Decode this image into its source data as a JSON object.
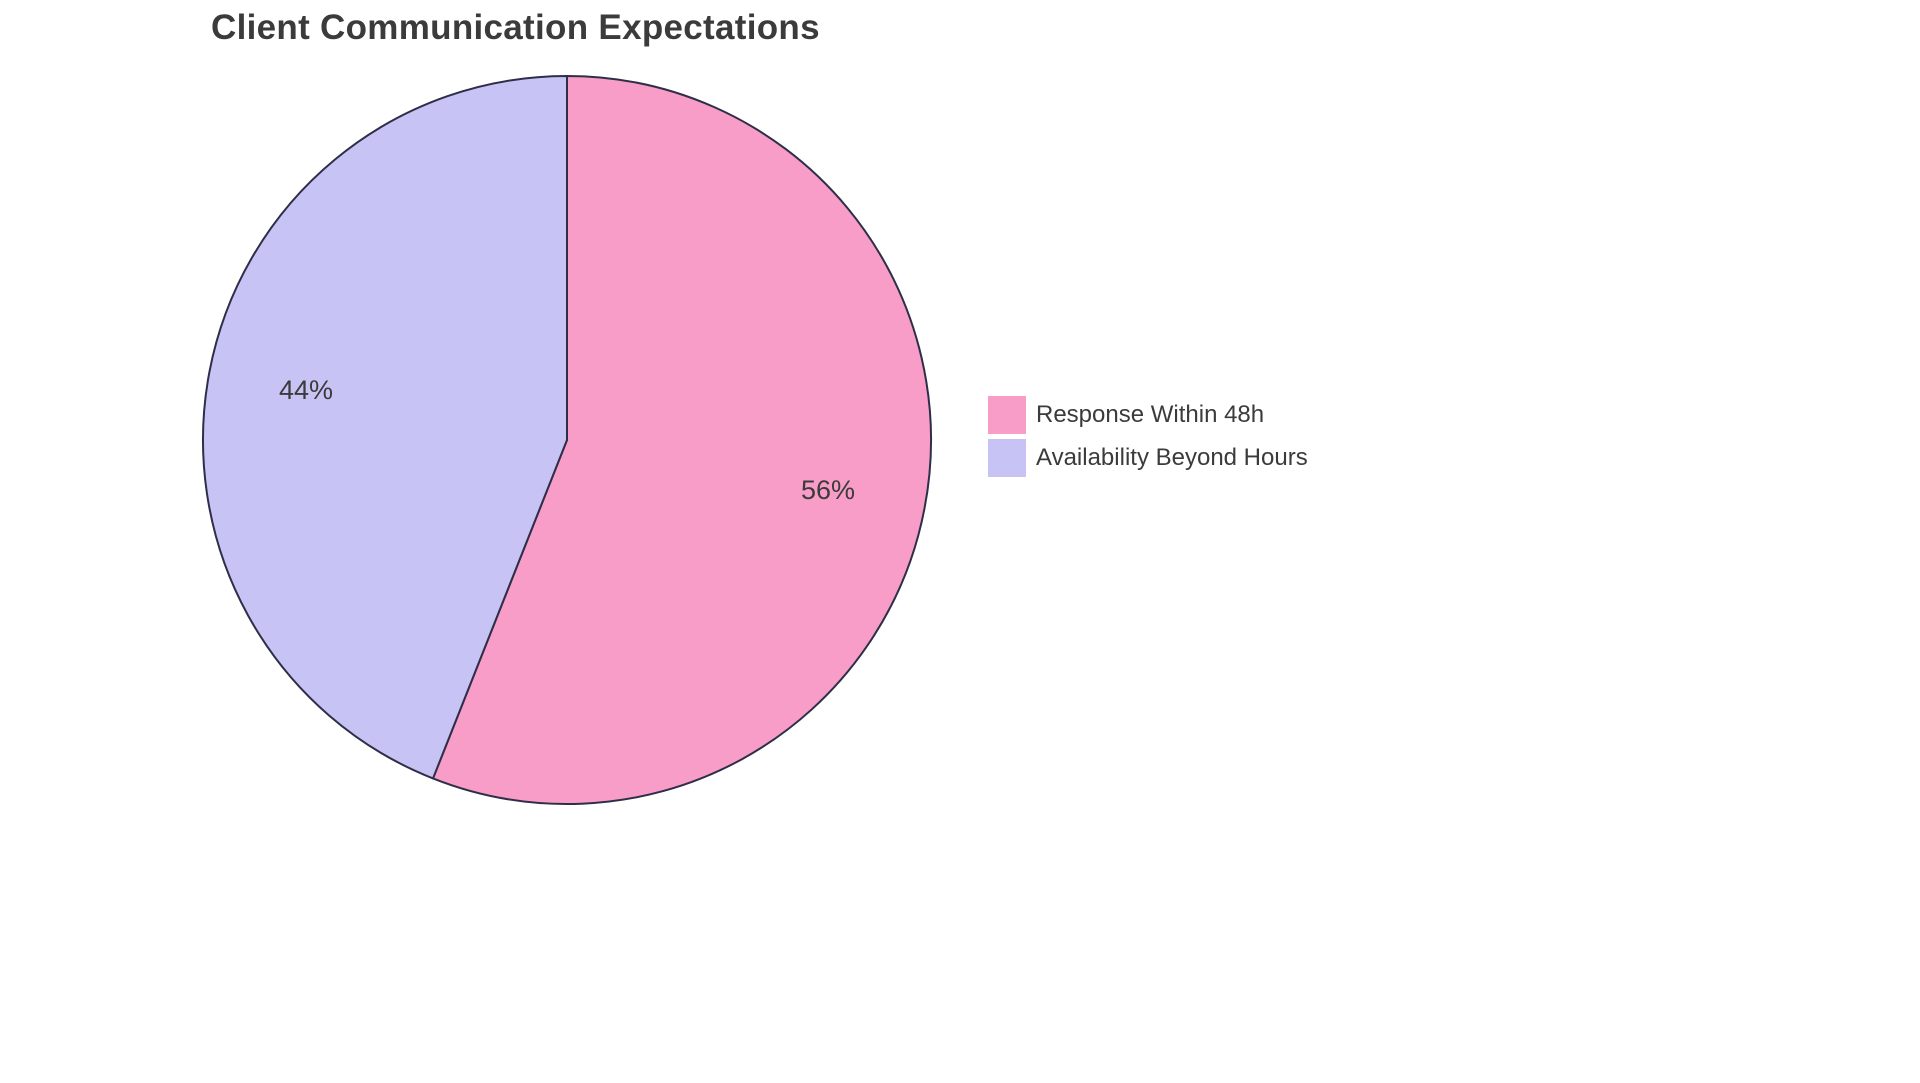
{
  "page": {
    "background": "#FFFFFF"
  },
  "chart_data": {
    "type": "pie",
    "title": "Client Communication Expectations",
    "labels": [
      "Response Within 48h",
      "Availability Beyond Hours"
    ],
    "values": [
      56,
      44
    ],
    "slice_labels": [
      "56%",
      "44%"
    ],
    "colors": [
      "#F89CC8",
      "#C7C3F5"
    ],
    "border_color": "#2E2E48",
    "text_color": "#3B3B3B",
    "legend_position": "right",
    "start_angle_deg": -90,
    "direction": "clockwise",
    "label_radius_ratio": 0.73
  }
}
